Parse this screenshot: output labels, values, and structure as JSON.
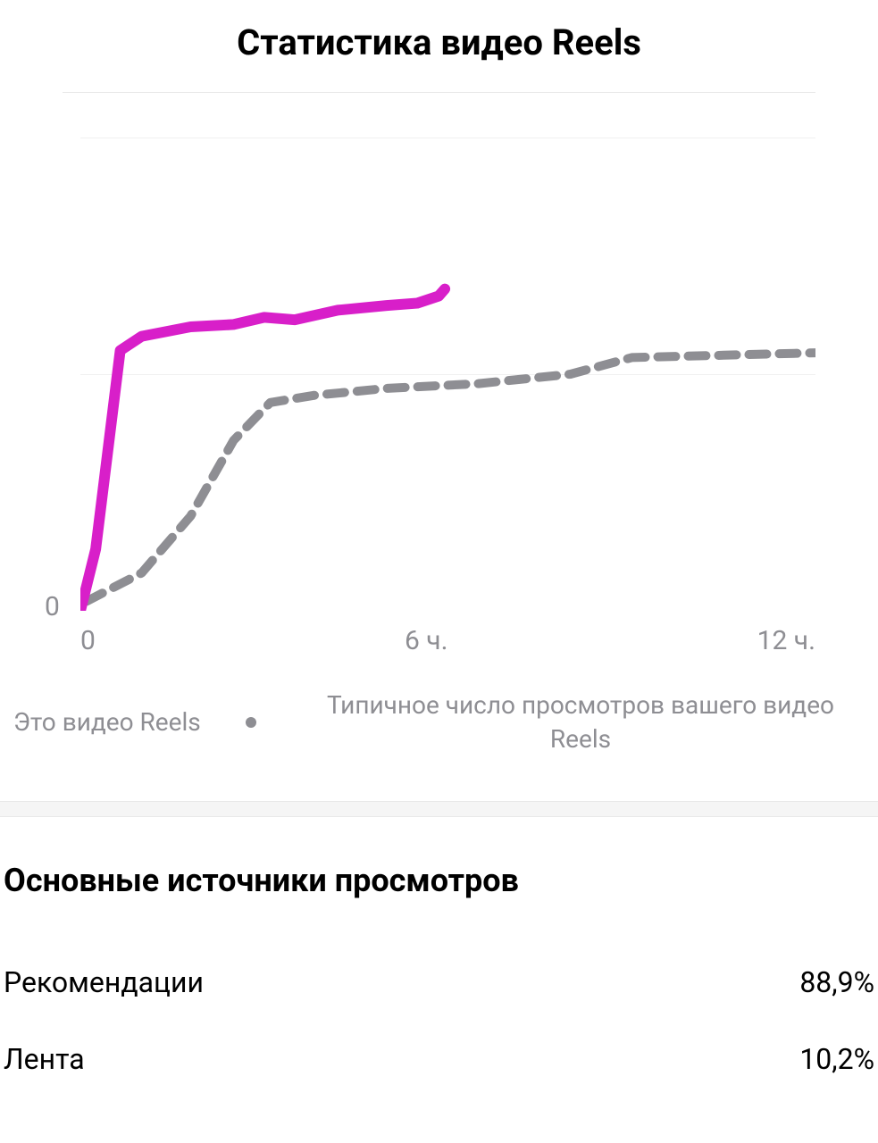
{
  "title": "Статистика видео Reels",
  "chart": {
    "type": "line",
    "background_color": "#ffffff",
    "grid_color": "#f0f0f0",
    "x_domain": [
      0,
      12
    ],
    "y_domain": [
      0,
      100
    ],
    "y_axis_label_zero": "0",
    "x_ticks": [
      "0",
      "6 ч.",
      "12 ч."
    ],
    "series": [
      {
        "name": "this_reel",
        "color": "#d81fc9",
        "stroke_width": 12,
        "dash": "none",
        "linecap": "round",
        "points": [
          [
            0.0,
            0
          ],
          [
            0.25,
            13
          ],
          [
            0.65,
            55
          ],
          [
            1.0,
            58
          ],
          [
            1.8,
            60
          ],
          [
            2.5,
            60.5
          ],
          [
            3.0,
            62
          ],
          [
            3.5,
            61.5
          ],
          [
            4.2,
            63.5
          ],
          [
            5.0,
            64.5
          ],
          [
            5.5,
            65
          ],
          [
            5.85,
            66.5
          ],
          [
            5.95,
            68
          ]
        ]
      },
      {
        "name": "typical_reel",
        "color": "#8e8e93",
        "stroke_width": 10,
        "dash": "20 14",
        "linecap": "round",
        "points": [
          [
            0.1,
            2
          ],
          [
            1.0,
            8
          ],
          [
            1.8,
            20
          ],
          [
            2.5,
            36
          ],
          [
            3.1,
            44
          ],
          [
            3.8,
            45.5
          ],
          [
            5.0,
            47
          ],
          [
            6.5,
            48
          ],
          [
            8.0,
            50
          ],
          [
            9.0,
            53.5
          ],
          [
            10.5,
            54
          ],
          [
            12.0,
            54.5
          ]
        ]
      }
    ]
  },
  "legend": {
    "item1": "Это видео Reels",
    "item2": "Типичное число просмотров вашего видео Reels"
  },
  "sources": {
    "title": "Основные источники просмотров",
    "rows": [
      {
        "label": "Рекомендации",
        "value": "88,9%"
      },
      {
        "label": "Лента",
        "value": "10,2%"
      }
    ]
  },
  "colors": {
    "text_primary": "#000000",
    "text_secondary": "#8e8e93",
    "divider": "#e8e8e8"
  }
}
